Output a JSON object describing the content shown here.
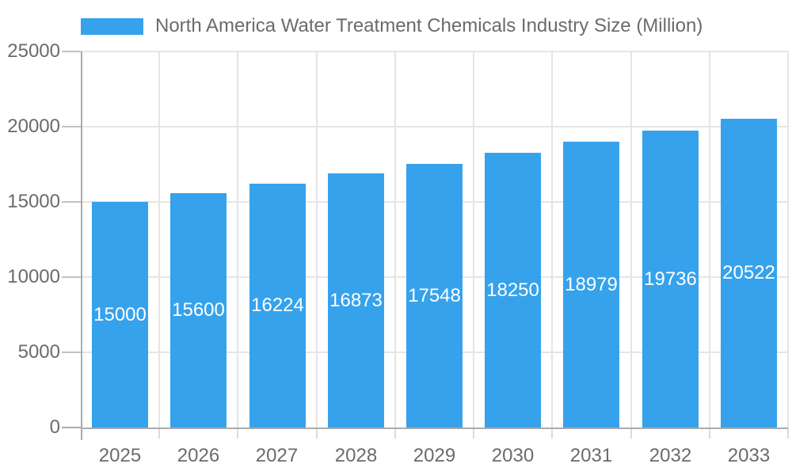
{
  "chart_data": {
    "type": "bar",
    "title": "North America Water Treatment Chemicals Industry Size (Million)",
    "categories": [
      "2025",
      "2026",
      "2027",
      "2028",
      "2029",
      "2030",
      "2031",
      "2032",
      "2033"
    ],
    "values": [
      15000,
      15600,
      16224,
      16873,
      17548,
      18250,
      18979,
      19736,
      20522
    ],
    "xlabel": "",
    "ylabel": "",
    "ylim": [
      0,
      25000
    ],
    "yticks": [
      0,
      5000,
      10000,
      15000,
      20000,
      25000
    ],
    "grid": true,
    "legend_position": "top",
    "value_label_position": "inside-center",
    "colors": {
      "bar": "#36A2EB",
      "bar_label": "#FFFFFF",
      "axis": "#ABABAB",
      "tick": "#C2C2C2",
      "x_tick": "#DBDBDB",
      "gridline": "#E5E5E5",
      "text": "#6B6B6B",
      "background": "#FFFFFF"
    }
  }
}
